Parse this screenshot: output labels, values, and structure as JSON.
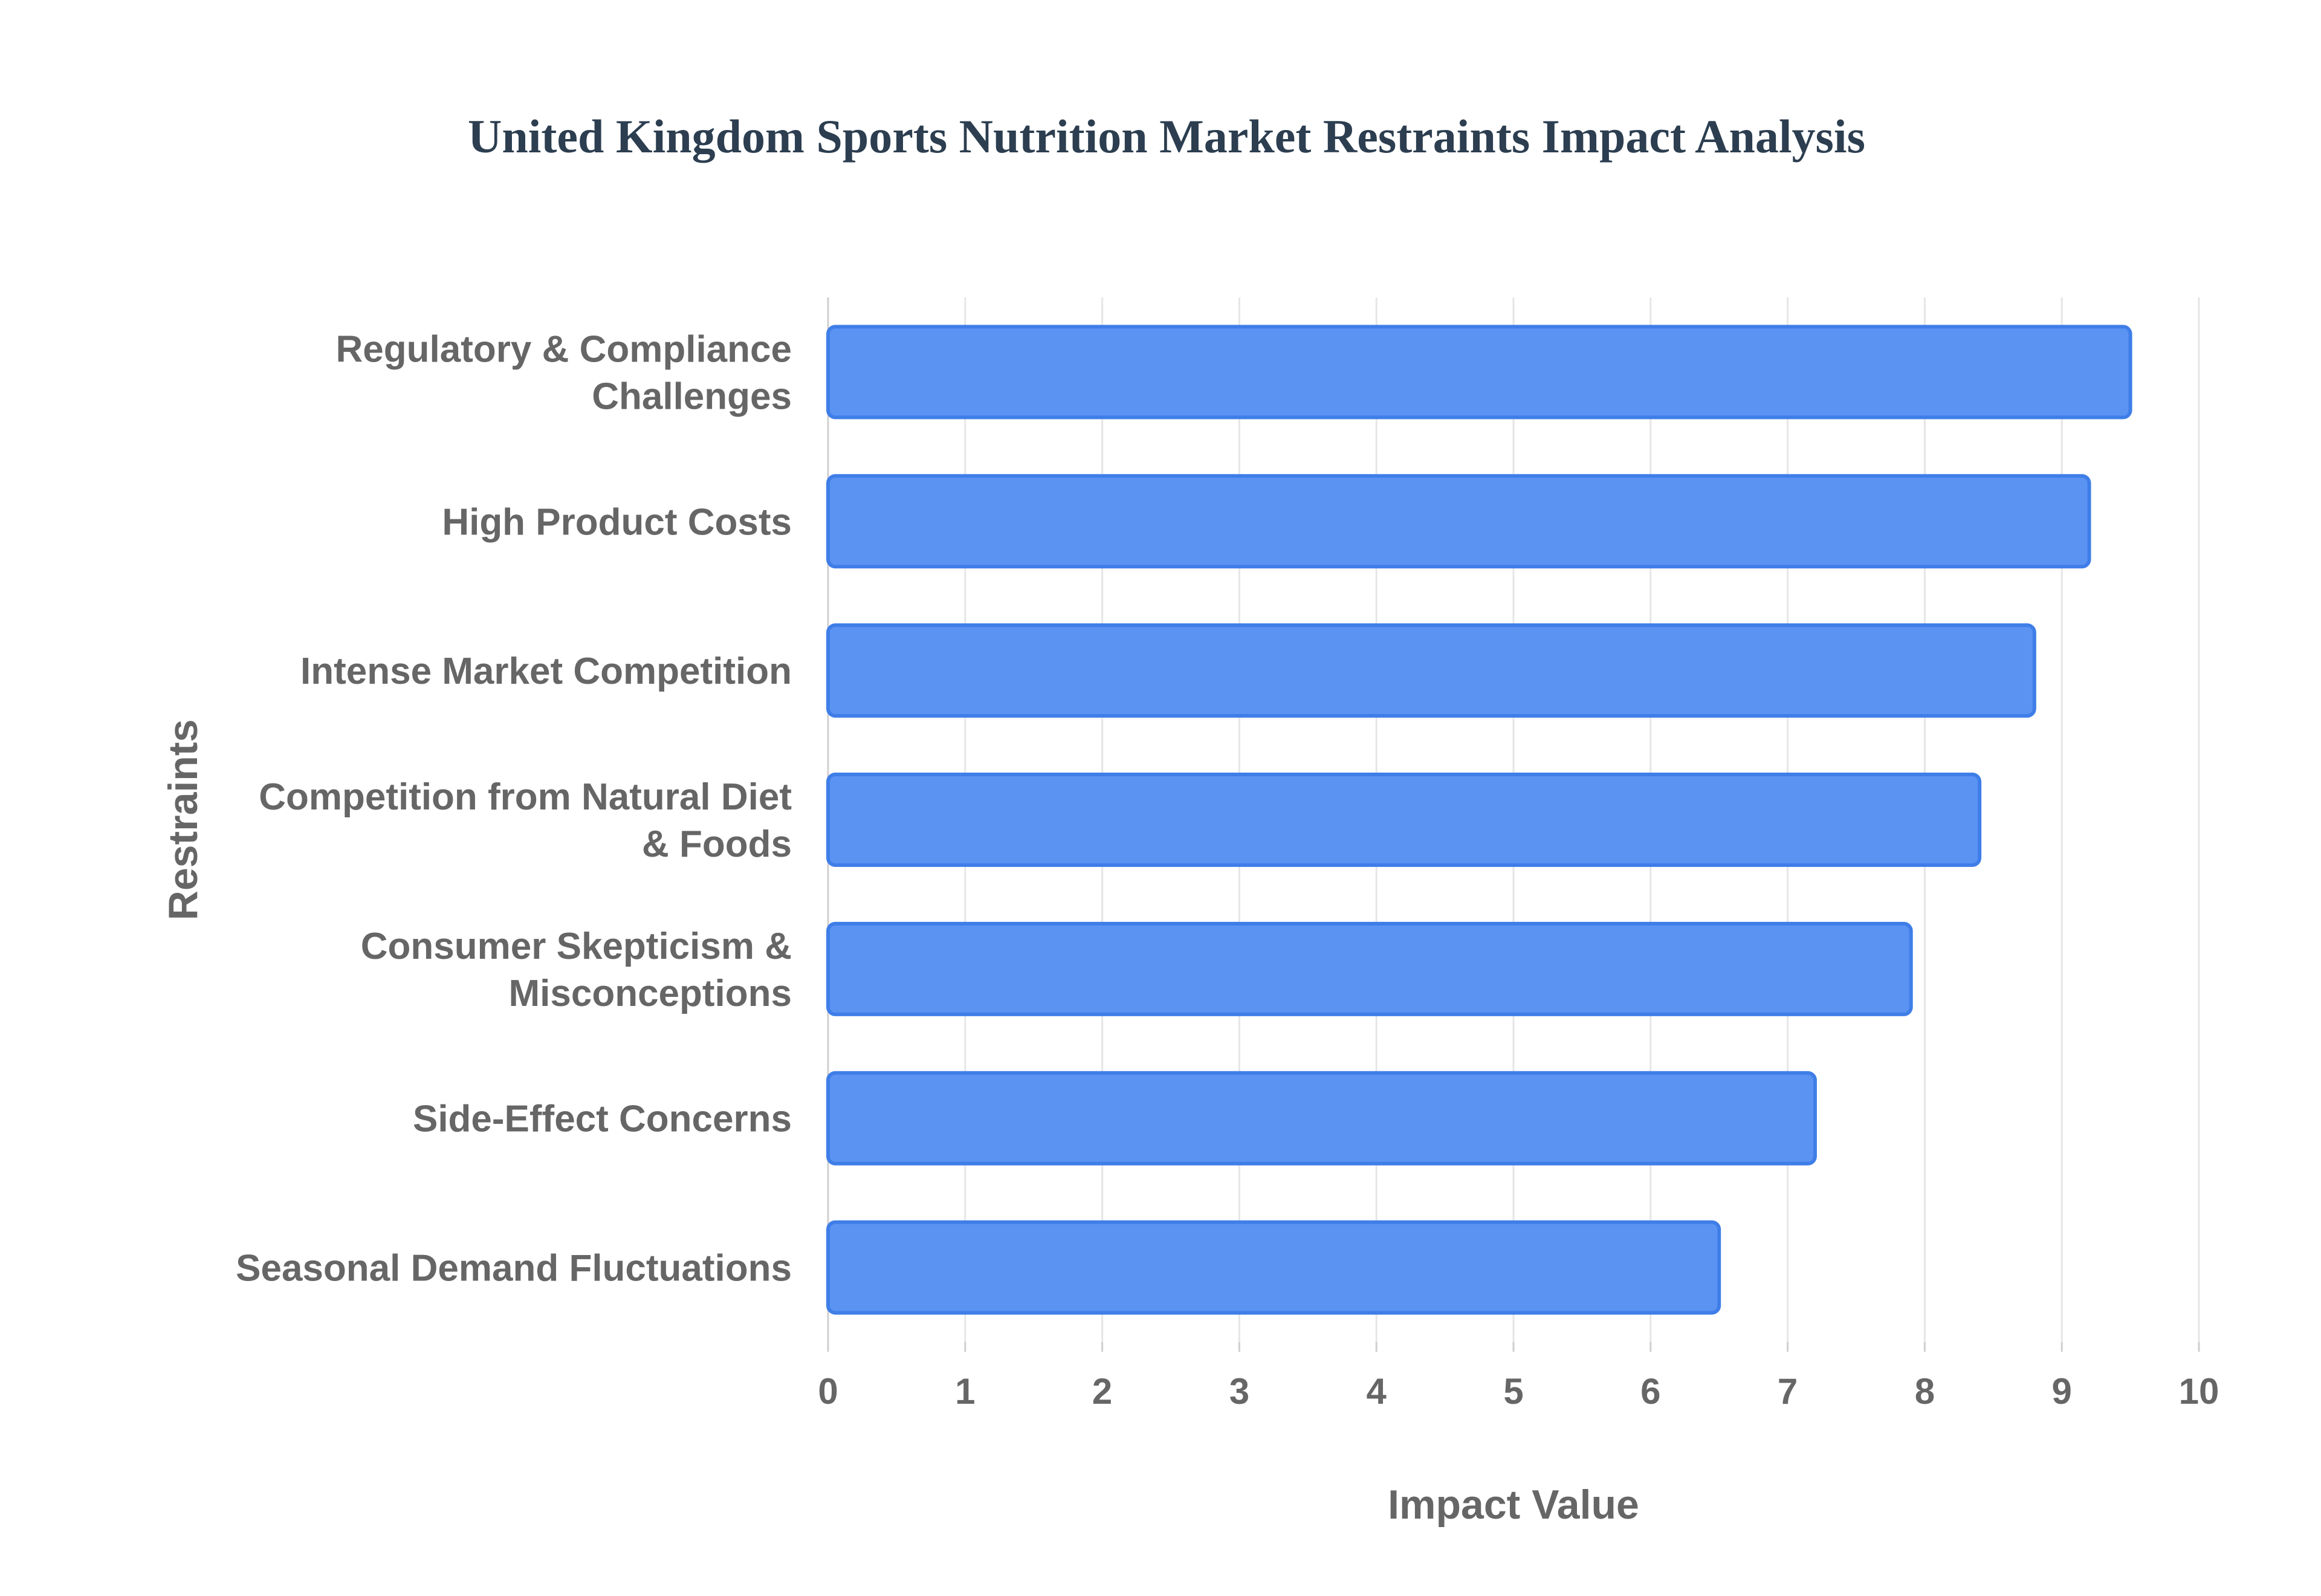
{
  "chart_data": {
    "type": "bar",
    "orientation": "horizontal",
    "title": "United Kingdom Sports Nutrition Market Restraints Impact Analysis",
    "xlabel": "Impact Value",
    "ylabel": "Restraints",
    "xlim": [
      0,
      10
    ],
    "xticks": [
      "0",
      "1",
      "2",
      "3",
      "4",
      "5",
      "6",
      "7",
      "8",
      "9",
      "10"
    ],
    "grid": true,
    "categories": [
      [
        "Regulatory & Compliance",
        "Challenges"
      ],
      [
        "High Product Costs"
      ],
      [
        "Intense Market Competition"
      ],
      [
        "Competition from Natural Diet",
        "& Foods"
      ],
      [
        "Consumer Skepticism &",
        "Misconceptions"
      ],
      [
        "Side-Effect Concerns"
      ],
      [
        "Seasonal Demand Fluctuations"
      ]
    ],
    "values": [
      9.5,
      9.2,
      8.8,
      8.4,
      7.9,
      7.2,
      6.5
    ],
    "colors": {
      "bar_fill": "#5b93f3",
      "bar_stroke": "#3f7ee8",
      "title": "#2c3e50",
      "axis_text": "#666666",
      "grid": "#e6e6e6",
      "axis_line": "#cfcfcf"
    }
  }
}
